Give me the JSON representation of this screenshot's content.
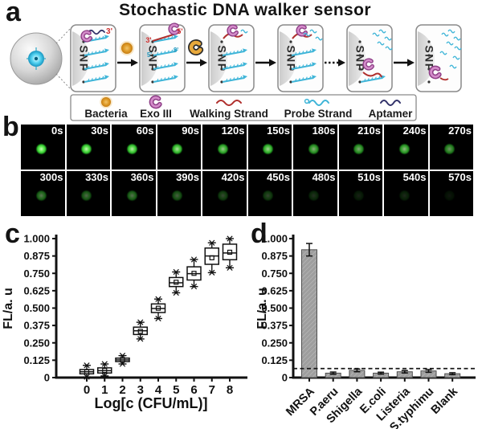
{
  "figure": {
    "title": "Stochastic DNA walker sensor"
  },
  "panels": {
    "a": {
      "letter": "a",
      "title": "Stochastic DNA walker sensor",
      "snp_label": "SNP",
      "steps": [
        {
          "strands": 4,
          "aptamer": true,
          "exo": "top",
          "fragments": 0,
          "end_label": "3'"
        },
        {
          "strands": 4,
          "walker": "duplex-top",
          "exo": "top",
          "fragments": 0,
          "labels": {
            "left": "3'",
            "right": "5'",
            "probe_left": "5'",
            "probe_right": "3'"
          }
        },
        {
          "strands": 3,
          "walker": "top",
          "exo": "top",
          "fragments": 1
        },
        {
          "strands": 3,
          "walker": "top",
          "exo": "top",
          "fragments": 3
        },
        {
          "strands": 1,
          "walker": "bottom",
          "exo": "mid",
          "fragments": 5
        },
        {
          "strands": 0,
          "exo": "free",
          "fragments": 8
        }
      ],
      "arrows": [
        {
          "style": "solid",
          "icon": "bacteria"
        },
        {
          "style": "solid",
          "icon": "exo-blob"
        },
        {
          "style": "solid",
          "icon": null
        },
        {
          "style": "dotted",
          "icon": null
        },
        {
          "style": "solid",
          "icon": null
        }
      ],
      "legend": [
        {
          "icon": "bacteria-icon",
          "label": "Bacteria"
        },
        {
          "icon": "exo-iii-icon",
          "label": "Exo III"
        },
        {
          "icon": "walking-strand-icon",
          "label": "Walking Strand"
        },
        {
          "icon": "probe-strand-icon",
          "label": "Probe Strand"
        },
        {
          "icon": "aptamer-icon",
          "label": "Aptamer"
        }
      ]
    },
    "b": {
      "letter": "b",
      "frames": [
        {
          "time": "0s",
          "intensity": 1.0
        },
        {
          "time": "30s",
          "intensity": 0.97
        },
        {
          "time": "60s",
          "intensity": 0.92
        },
        {
          "time": "90s",
          "intensity": 0.87
        },
        {
          "time": "120s",
          "intensity": 0.78
        },
        {
          "time": "150s",
          "intensity": 0.82
        },
        {
          "time": "180s",
          "intensity": 0.68
        },
        {
          "time": "210s",
          "intensity": 0.66
        },
        {
          "time": "240s",
          "intensity": 0.72
        },
        {
          "time": "270s",
          "intensity": 0.58
        },
        {
          "time": "300s",
          "intensity": 0.46
        },
        {
          "time": "330s",
          "intensity": 0.4
        },
        {
          "time": "360s",
          "intensity": 0.44
        },
        {
          "time": "390s",
          "intensity": 0.36
        },
        {
          "time": "420s",
          "intensity": 0.28
        },
        {
          "time": "450s",
          "intensity": 0.26
        },
        {
          "time": "480s",
          "intensity": 0.18
        },
        {
          "time": "510s",
          "intensity": 0.12
        },
        {
          "time": "540s",
          "intensity": 0.15
        },
        {
          "time": "570s",
          "intensity": 0.08
        }
      ]
    },
    "c": {
      "letter": "c"
    },
    "d": {
      "letter": "d"
    }
  },
  "chart_data": [
    {
      "panel": "c",
      "type": "boxplot",
      "xlabel": "Log[c (CFU/mL)]",
      "ylabel": "FL/a. u",
      "x_tick_labels": [
        "0",
        "1",
        "2",
        "3",
        "4",
        "5",
        "6",
        "7",
        "8"
      ],
      "y_tick_values": [
        0,
        0.125,
        0.25,
        0.375,
        0.5,
        0.625,
        0.75,
        0.875,
        1.0
      ],
      "y_tick_labels": [
        "0",
        "0.125",
        "0.250",
        "0.375",
        "0.500",
        "0.625",
        "0.750",
        "0.875",
        "1.000"
      ],
      "ylim": [
        0,
        1.0
      ],
      "grid": false,
      "boxes": [
        {
          "x": "0",
          "low": 0.005,
          "q1": 0.027,
          "median": 0.042,
          "q3": 0.058,
          "high": 0.088,
          "mean": 0.042
        },
        {
          "x": "1",
          "low": 0.012,
          "q1": 0.033,
          "median": 0.05,
          "q3": 0.07,
          "high": 0.098,
          "mean": 0.051
        },
        {
          "x": "2",
          "low": 0.098,
          "q1": 0.115,
          "median": 0.127,
          "q3": 0.14,
          "high": 0.158,
          "mean": 0.127
        },
        {
          "x": "3",
          "low": 0.278,
          "q1": 0.31,
          "median": 0.337,
          "q3": 0.363,
          "high": 0.398,
          "mean": 0.333
        },
        {
          "x": "4",
          "low": 0.425,
          "q1": 0.468,
          "median": 0.497,
          "q3": 0.53,
          "high": 0.565,
          "mean": 0.499
        },
        {
          "x": "5",
          "low": 0.61,
          "q1": 0.655,
          "median": 0.682,
          "q3": 0.72,
          "high": 0.76,
          "mean": 0.686
        },
        {
          "x": "6",
          "low": 0.655,
          "q1": 0.702,
          "median": 0.748,
          "q3": 0.797,
          "high": 0.85,
          "mean": 0.75
        },
        {
          "x": "7",
          "low": 0.755,
          "q1": 0.815,
          "median": 0.875,
          "q3": 0.932,
          "high": 0.97,
          "mean": 0.862
        },
        {
          "x": "8",
          "low": 0.79,
          "q1": 0.848,
          "median": 0.897,
          "q3": 0.96,
          "high": 1.0,
          "mean": 0.902
        }
      ]
    },
    {
      "panel": "d",
      "type": "bar",
      "xlabel": "",
      "ylabel": "FL/a. u",
      "categories": [
        "MRSA",
        "P.aeru",
        "Shigella",
        "E.coli",
        "Listeria",
        "S.typhimu",
        "Blank"
      ],
      "values": [
        0.92,
        0.032,
        0.052,
        0.032,
        0.042,
        0.048,
        0.028
      ],
      "errors": [
        0.045,
        0.008,
        0.01,
        0.007,
        0.009,
        0.01,
        0.007
      ],
      "threshold_line": 0.065,
      "y_tick_values": [
        0,
        0.125,
        0.25,
        0.375,
        0.5,
        0.625,
        0.75,
        0.875,
        1.0
      ],
      "y_tick_labels": [
        "0",
        "0.125",
        "0.250",
        "0.375",
        "0.500",
        "0.625",
        "0.750",
        "0.875",
        "1.000"
      ],
      "ylim": [
        0,
        1.0
      ],
      "bar_color": "#9e9e9e",
      "grid": false,
      "legend_position": "none"
    }
  ],
  "colors": {
    "fluorescence_green": "#3fd83a",
    "probe_strand": "#3fb5d8",
    "walking_strand": "#b0302e",
    "aptamer": "#32326a",
    "exo_iii": "#b85cae",
    "bacteria": "#e09a2c",
    "axis": "#111111"
  }
}
